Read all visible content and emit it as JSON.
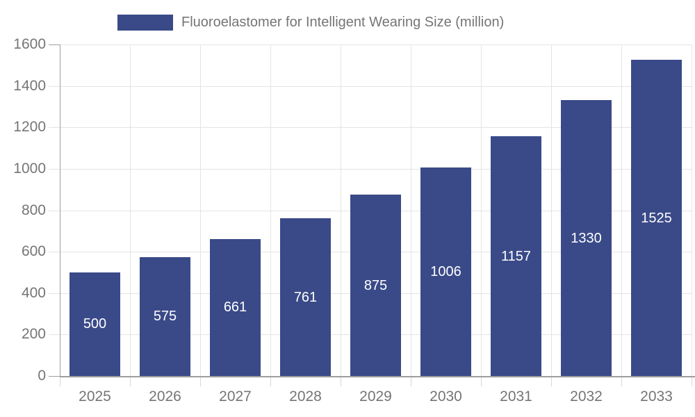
{
  "legend": {
    "label": "Fluoroelastomer for Intelligent Wearing Size (million)"
  },
  "chart_data": {
    "type": "bar",
    "title": "Fluoroelastomer for Intelligent Wearing Size (million)",
    "categories": [
      "2025",
      "2026",
      "2027",
      "2028",
      "2029",
      "2030",
      "2031",
      "2032",
      "2033"
    ],
    "values": [
      500,
      575,
      661,
      761,
      875,
      1006,
      1157,
      1330,
      1525
    ],
    "xlabel": "",
    "ylabel": "",
    "ylim": [
      0,
      1600
    ],
    "yticks": [
      0,
      200,
      400,
      600,
      800,
      1000,
      1200,
      1400,
      1600
    ],
    "grid": true,
    "legend_position": "top",
    "value_label_position": "inside-center"
  },
  "colors": {
    "bar": "#3A4A88",
    "value_label": "#FFFFFF",
    "axis_line": "#9E9E9E",
    "tick_label": "#757575",
    "legend_text": "#757575",
    "gridline": "#E4E4E4",
    "minor_tick": "#D6D6D6",
    "background": "#FFFFFF"
  }
}
